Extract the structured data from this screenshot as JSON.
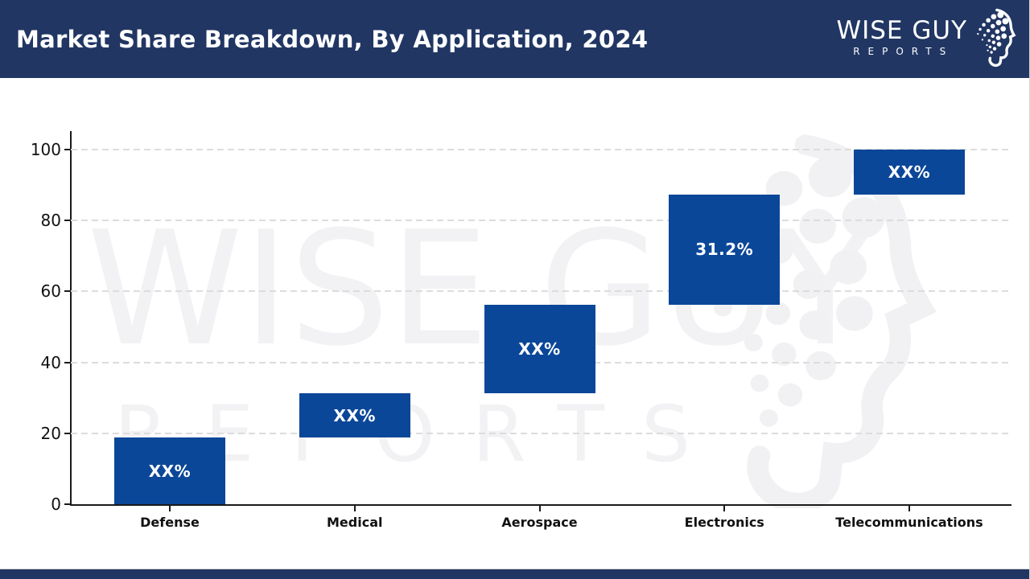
{
  "header": {
    "title": "Market Share Breakdown, By Application, 2024",
    "logo": {
      "line1": "WISE GUY",
      "line2": "REPORTS"
    }
  },
  "watermark": {
    "line1": "WISE GUY",
    "line2": "REPORTS"
  },
  "chart_data": {
    "type": "bar",
    "subtype": "waterfall",
    "title": "Market Share Breakdown, By Application, 2024",
    "categories": [
      "Defense",
      "Medical",
      "Aerospace",
      "Electronics",
      "Telecommunications"
    ],
    "bars": [
      {
        "category": "Defense",
        "start": 0,
        "end": 18.8,
        "value_label": "XX%"
      },
      {
        "category": "Medical",
        "start": 18.8,
        "end": 31.2,
        "value_label": "XX%"
      },
      {
        "category": "Aerospace",
        "start": 31.2,
        "end": 56.2,
        "value_label": "XX%"
      },
      {
        "category": "Electronics",
        "start": 56.2,
        "end": 87.4,
        "value_label": "31.2%"
      },
      {
        "category": "Telecommunications",
        "start": 87.4,
        "end": 100,
        "value_label": "XX%"
      }
    ],
    "y_ticks": [
      0,
      20,
      40,
      60,
      80,
      100
    ],
    "ylim": [
      0,
      105
    ],
    "xlabel": "",
    "ylabel": "",
    "grid": "horizontal-dashed",
    "legend": "none"
  },
  "colors": {
    "header_bg": "#213663",
    "footer_bg": "#213663",
    "bar_blue": "#0b4798",
    "grid_line": "#dcdcdc",
    "axis_line": "#1a1a1a",
    "watermark_gray": "#f2f2f4",
    "hairline": "#d6d6d6",
    "title_text": "#ffffff",
    "bar_label_text": "#ffffff",
    "tick_text": "#111111"
  }
}
